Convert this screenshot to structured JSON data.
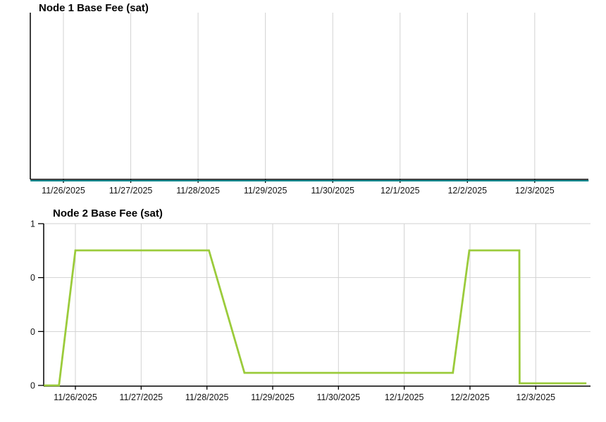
{
  "page": {
    "background": "#ffffff"
  },
  "colors": {
    "grid": "#d2d2d2",
    "axis": "#000000",
    "tick_text": "#141414",
    "node1_series": "#0f878d",
    "node2_series": "#9bcb3b"
  },
  "chart_data": [
    {
      "type": "line",
      "title": "Node 1 Base Fee (sat)",
      "xlabel": "",
      "ylabel": "",
      "legend": "none",
      "grid": "vertical gridlines only",
      "x_tick_labels": [
        "11/26/2025",
        "11/27/2025",
        "11/28/2025",
        "11/29/2025",
        "11/30/2025",
        "12/1/2025",
        "12/2/2025",
        "12/3/2025"
      ],
      "y_tick_labels": [],
      "x_unit": "days offset from the 11/26/2025 tick (1 day per tick)",
      "series": [
        {
          "name": "Node 1 base fee",
          "color": "#0f878d",
          "description": "constant 0 sat across the entire visible date range; line lies on the x-axis",
          "points": [
            {
              "x": -0.49,
              "y": 0
            },
            {
              "x": 7.8,
              "y": 0
            }
          ]
        }
      ]
    },
    {
      "type": "line",
      "title": "Node 2 Base Fee (sat)",
      "xlabel": "",
      "ylabel": "",
      "legend": "none",
      "grid": "horizontal and vertical gridlines",
      "x_tick_labels": [
        "11/26/2025",
        "11/27/2025",
        "11/28/2025",
        "11/29/2025",
        "11/30/2025",
        "12/1/2025",
        "12/2/2025",
        "12/3/2025"
      ],
      "y_tick_labels": [
        {
          "label": "1",
          "value": 1
        },
        {
          "label": "0",
          "value": 0.6667
        },
        {
          "label": "0",
          "value": 0.3333
        },
        {
          "label": "0",
          "value": 0
        }
      ],
      "x_unit": "days offset from the 11/26/2025 tick (1 day per tick)",
      "y_unit": "fraction of axis height (ticks render as 1,0,0,0)",
      "series": [
        {
          "name": "Node 2 base fee",
          "color": "#9bcb3b",
          "description": "0 before 11/26; high plateau 11/26-11/28; ramps down to low level until ~12/1.7; high plateau 12/2-12/2.75; drops to near 0 through 12/3+",
          "points": [
            {
              "x": -0.48,
              "y": 0
            },
            {
              "x": -0.25,
              "y": 0
            },
            {
              "x": 0.0,
              "y": 0.835
            },
            {
              "x": 2.03,
              "y": 0.835
            },
            {
              "x": 2.57,
              "y": 0.078
            },
            {
              "x": 5.74,
              "y": 0.078
            },
            {
              "x": 5.99,
              "y": 0.835
            },
            {
              "x": 6.75,
              "y": 0.835
            },
            {
              "x": 6.755,
              "y": 0.013
            },
            {
              "x": 7.77,
              "y": 0.013
            }
          ]
        }
      ]
    }
  ]
}
